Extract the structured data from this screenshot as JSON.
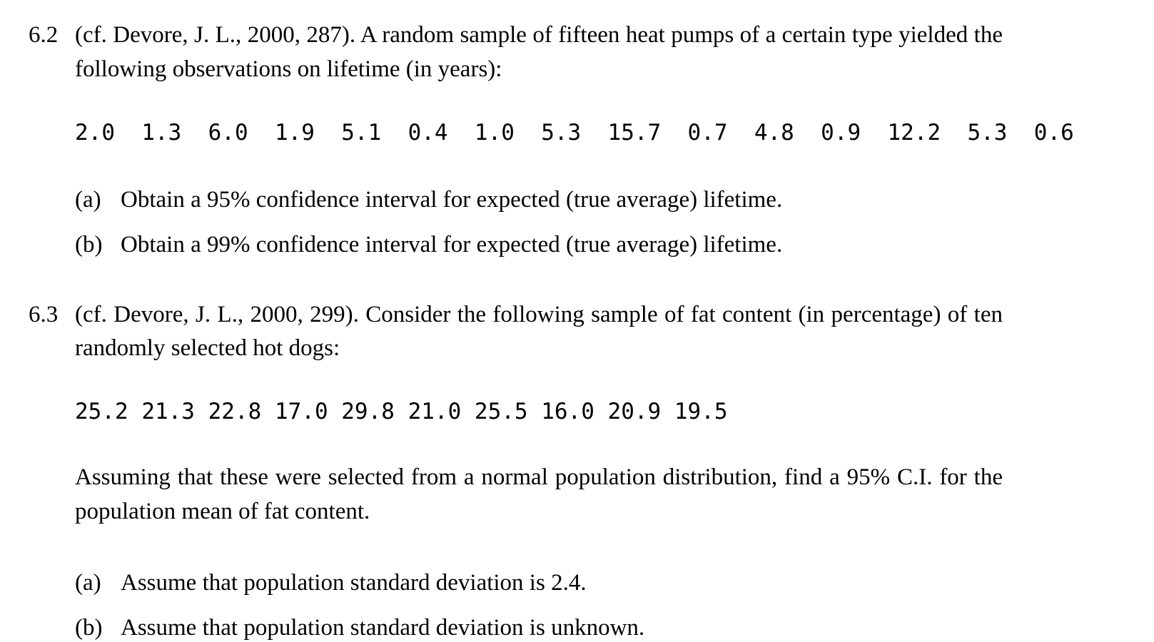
{
  "problems": [
    {
      "number": "6.2",
      "intro": "(cf. Devore, J. L., 2000, 287). A random sample of fifteen heat pumps of a certain type yielded the following observations on lifetime (in years):",
      "data_line": "2.0  1.3  6.0  1.9  5.1  0.4  1.0  5.3  15.7  0.7  4.8  0.9  12.2  5.3  0.6",
      "data_values": [
        2.0,
        1.3,
        6.0,
        1.9,
        5.1,
        0.4,
        1.0,
        5.3,
        15.7,
        0.7,
        4.8,
        0.9,
        12.2,
        5.3,
        0.6
      ],
      "followup": "",
      "parts": [
        {
          "label": "(a)",
          "text": "Obtain a 95% confidence interval for expected (true average) lifetime."
        },
        {
          "label": "(b)",
          "text": "Obtain a 99% confidence interval for expected (true average) lifetime."
        }
      ]
    },
    {
      "number": "6.3",
      "intro": "(cf. Devore, J. L., 2000, 299). Consider the following sample of fat content (in percentage) of ten randomly selected hot dogs:",
      "data_line": "25.2 21.3 22.8 17.0 29.8 21.0 25.5 16.0 20.9 19.5",
      "data_values": [
        25.2,
        21.3,
        22.8,
        17.0,
        29.8,
        21.0,
        25.5,
        16.0,
        20.9,
        19.5
      ],
      "followup": "Assuming that these were selected from a normal population distribution, find a 95% C.I. for the population mean of fat content.",
      "parts": [
        {
          "label": "(a)",
          "text": "Assume that population standard deviation is 2.4."
        },
        {
          "label": "(b)",
          "text": "Assume that population standard deviation is unknown."
        }
      ]
    }
  ]
}
